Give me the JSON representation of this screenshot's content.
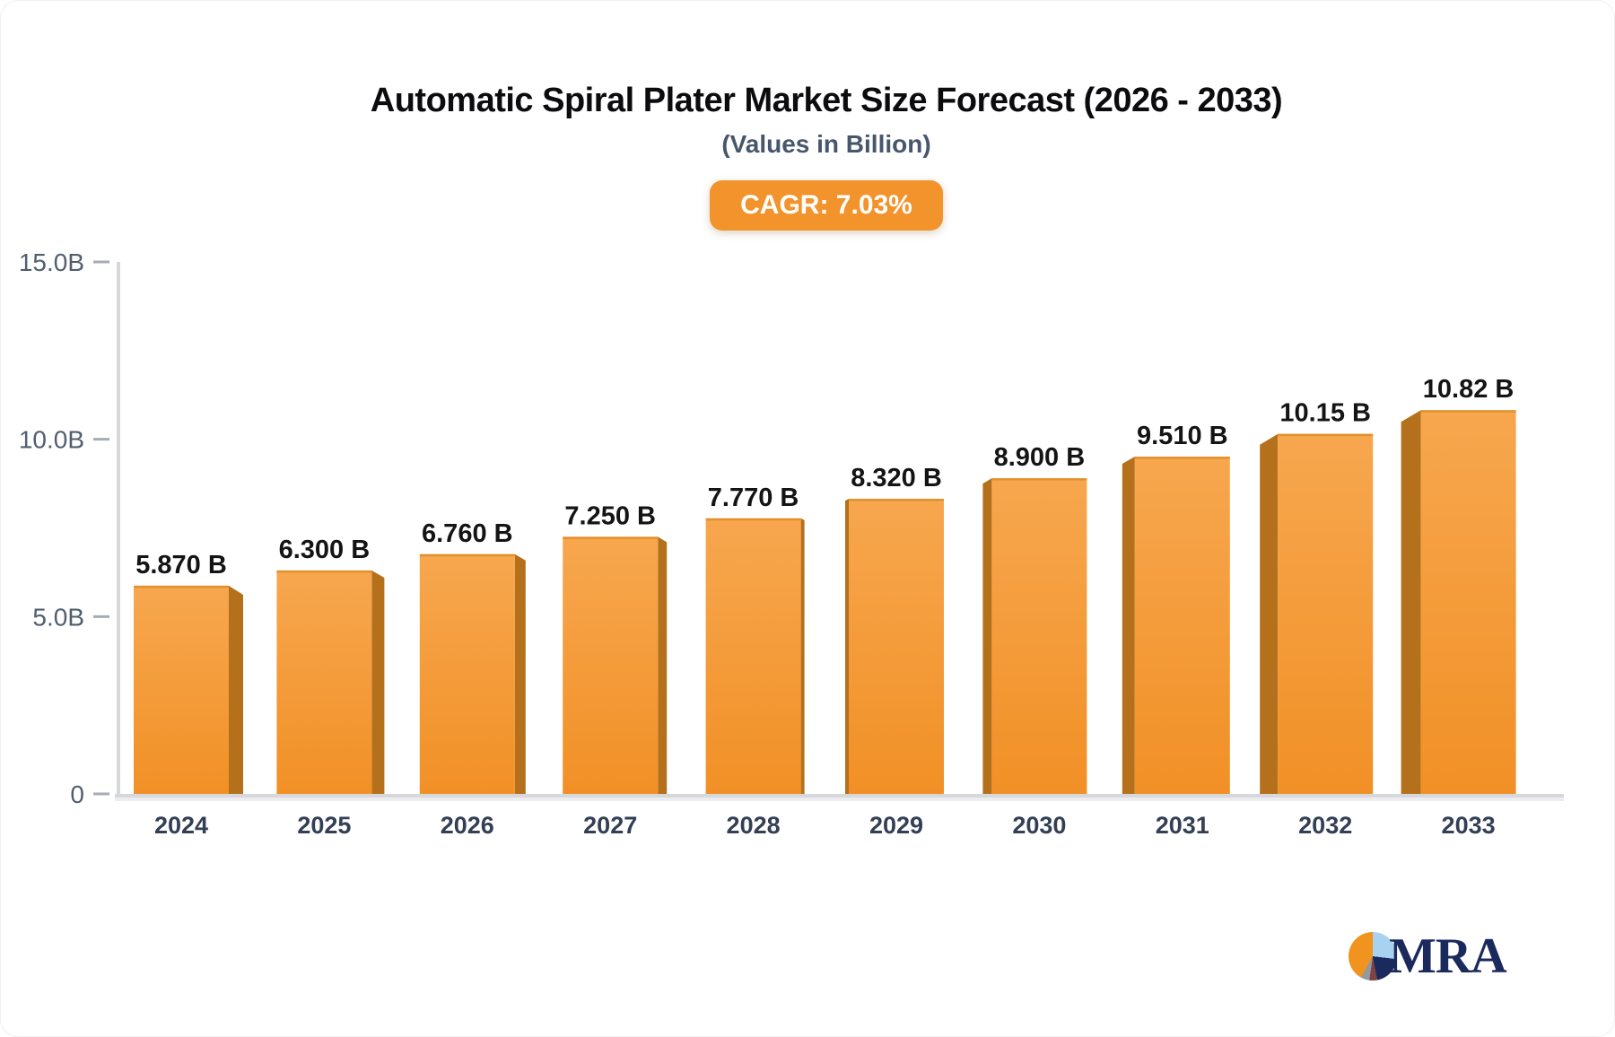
{
  "header": {
    "title": "Automatic Spiral Plater Market Size Forecast (2026 - 2033)",
    "subtitle": "(Values in Billion)",
    "cagr_label": "CAGR: 7.03%"
  },
  "logo": {
    "text": "MRA"
  },
  "colors": {
    "badge_bg": "#F2932C",
    "bar_face_top": "#F7A74F",
    "bar_face_bottom": "#F19026",
    "bar_face_edge": "#E08C26",
    "bar_side": "#B5701B",
    "axis_line": "#D7D8DC",
    "axis_shadow": "#EDEDF0",
    "tick_dash": "#A6ABB5",
    "tick_label": "#525E6E",
    "year_label": "#333F54",
    "value_label": "#141414",
    "logo_navy": "#1B2A5C",
    "logo_orange": "#F0941F",
    "logo_lightblue": "#A9D2F0",
    "logo_maroon": "#7C4444",
    "logo_gray": "#97979F"
  },
  "chart_data": {
    "type": "bar",
    "title": "Automatic Spiral Plater Market Size Forecast (2026 - 2033)",
    "subtitle": "(Values in Billion)",
    "cagr": "7.03%",
    "categories": [
      "2024",
      "2025",
      "2026",
      "2027",
      "2028",
      "2029",
      "2030",
      "2031",
      "2032",
      "2033"
    ],
    "values": [
      5.87,
      6.3,
      6.76,
      7.25,
      7.77,
      8.32,
      8.9,
      9.51,
      10.15,
      10.82
    ],
    "bar_labels": [
      "5.870 B",
      "6.300 B",
      "6.760 B",
      "7.250 B",
      "7.770 B",
      "8.320 B",
      "8.900 B",
      "9.510 B",
      "10.15 B",
      "10.82 B"
    ],
    "xlabel": "",
    "ylabel": "",
    "ylim": [
      0,
      15
    ],
    "y_ticks": [
      {
        "value": 15,
        "label": "15.0B"
      },
      {
        "value": 10,
        "label": "10.0B"
      },
      {
        "value": 5,
        "label": "5.0B"
      },
      {
        "value": 0,
        "label": "0"
      }
    ],
    "grid": false,
    "legend": null,
    "bar_color_hint": "orange 3D gradient bars"
  }
}
